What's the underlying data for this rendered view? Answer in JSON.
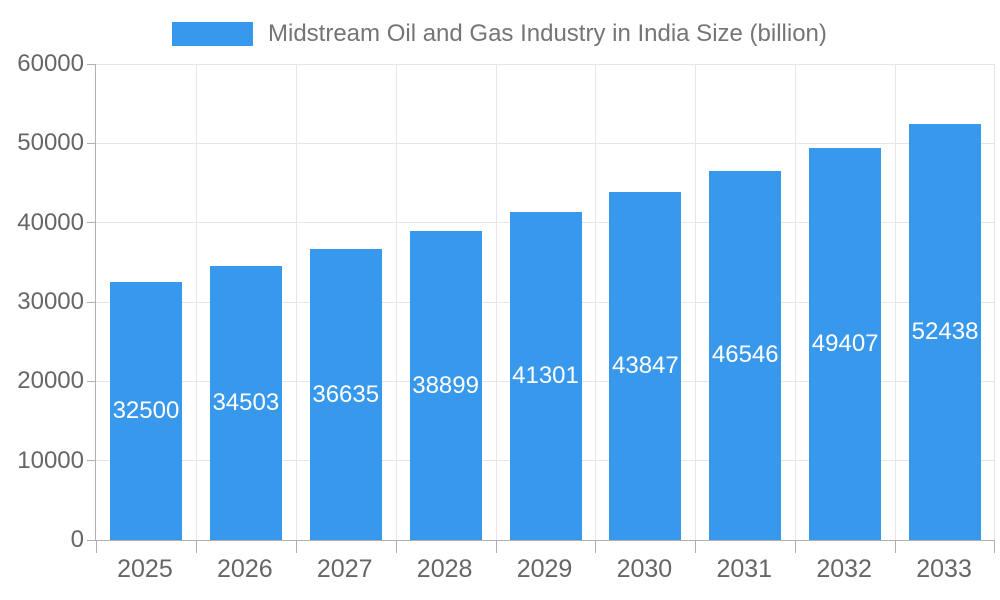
{
  "legend": {
    "label": "Midstream Oil and Gas Industry in India Size (billion)"
  },
  "colors": {
    "bar": "#3898ec",
    "grid": "#e6e6e6",
    "axis": "#b0b0b0",
    "tick_label": "#666666",
    "legend_text": "#757575",
    "value_label": "#ffffff"
  },
  "chart_data": {
    "type": "bar",
    "title": "Midstream Oil and Gas Industry in India Size (billion)",
    "categories": [
      "2025",
      "2026",
      "2027",
      "2028",
      "2029",
      "2030",
      "2031",
      "2032",
      "2033"
    ],
    "values": [
      32500,
      34503,
      36635,
      38899,
      41301,
      43847,
      46546,
      49407,
      52438
    ],
    "xlabel": "",
    "ylabel": "",
    "ylim": [
      0,
      60000
    ],
    "yticks": [
      0,
      10000,
      20000,
      30000,
      40000,
      50000,
      60000
    ],
    "grid": true,
    "legend_position": "top",
    "value_label_position": "inside-center"
  }
}
